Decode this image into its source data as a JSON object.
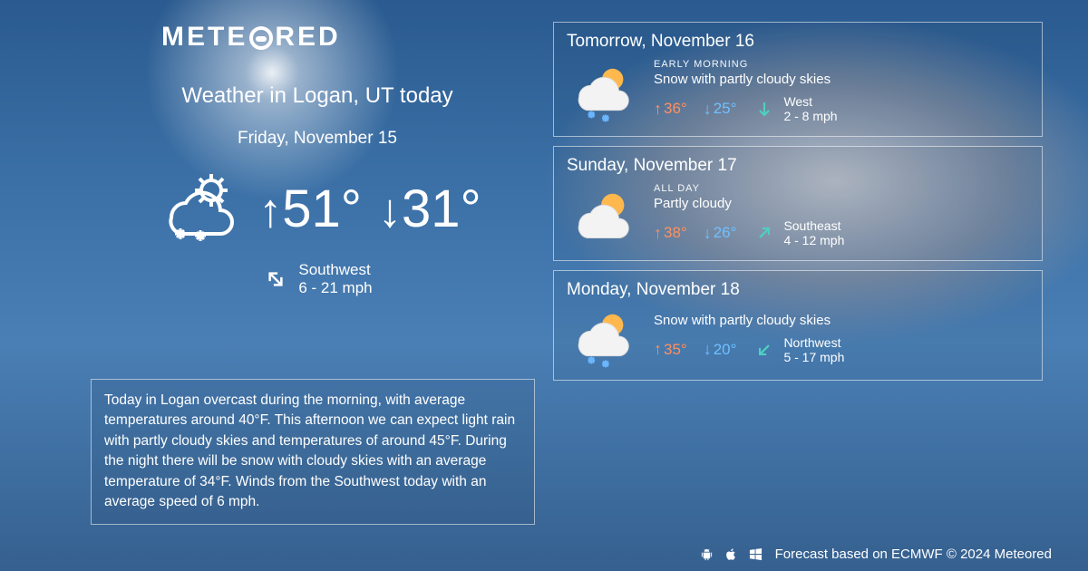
{
  "brand": "METEORED",
  "location_title": "Weather in Logan, UT today",
  "today": {
    "date": "Friday, November 15",
    "high": "51°",
    "low": "31°",
    "wind_dir": "Southwest",
    "wind_speed": "6 - 21 mph",
    "condition_icon": "snow-partly-cloudy",
    "description": "Today in Logan overcast during the morning, with average temperatures around 40°F. This afternoon we can expect light rain with partly cloudy skies and temperatures of around 45°F. During the night there will be snow with cloudy skies with an average temperature of 34°F. Winds from the Southwest today with an average speed of 6 mph."
  },
  "forecast": [
    {
      "title": "Tomorrow, November 16",
      "period": "EARLY MORNING",
      "condition": "Snow with partly cloudy skies",
      "icon": "snow-partly-cloudy",
      "high": "36°",
      "low": "25°",
      "wind_dir": "West",
      "wind_speed": "2 - 8 mph",
      "wind_arrow_color": "#4dd0c0",
      "wind_rotation": 90
    },
    {
      "title": "Sunday, November 17",
      "period": "ALL DAY",
      "condition": "Partly cloudy",
      "icon": "partly-cloudy",
      "high": "38°",
      "low": "26°",
      "wind_dir": "Southeast",
      "wind_speed": "4 - 12 mph",
      "wind_arrow_color": "#4dd0c0",
      "wind_rotation": -45
    },
    {
      "title": "Monday, November 18",
      "period": "",
      "condition": "Snow with partly cloudy skies",
      "icon": "snow-partly-cloudy",
      "high": "35°",
      "low": "20°",
      "wind_dir": "Northwest",
      "wind_speed": "5 - 17 mph",
      "wind_arrow_color": "#4dd0c0",
      "wind_rotation": 135
    }
  ],
  "footer": {
    "text": "Forecast based on ECMWF © 2024 Meteored",
    "platforms": [
      "android",
      "apple",
      "windows"
    ]
  },
  "colors": {
    "high": "#ff9060",
    "low": "#70c0ff",
    "border": "rgba(255,255,255,0.55)",
    "text": "#ffffff"
  }
}
